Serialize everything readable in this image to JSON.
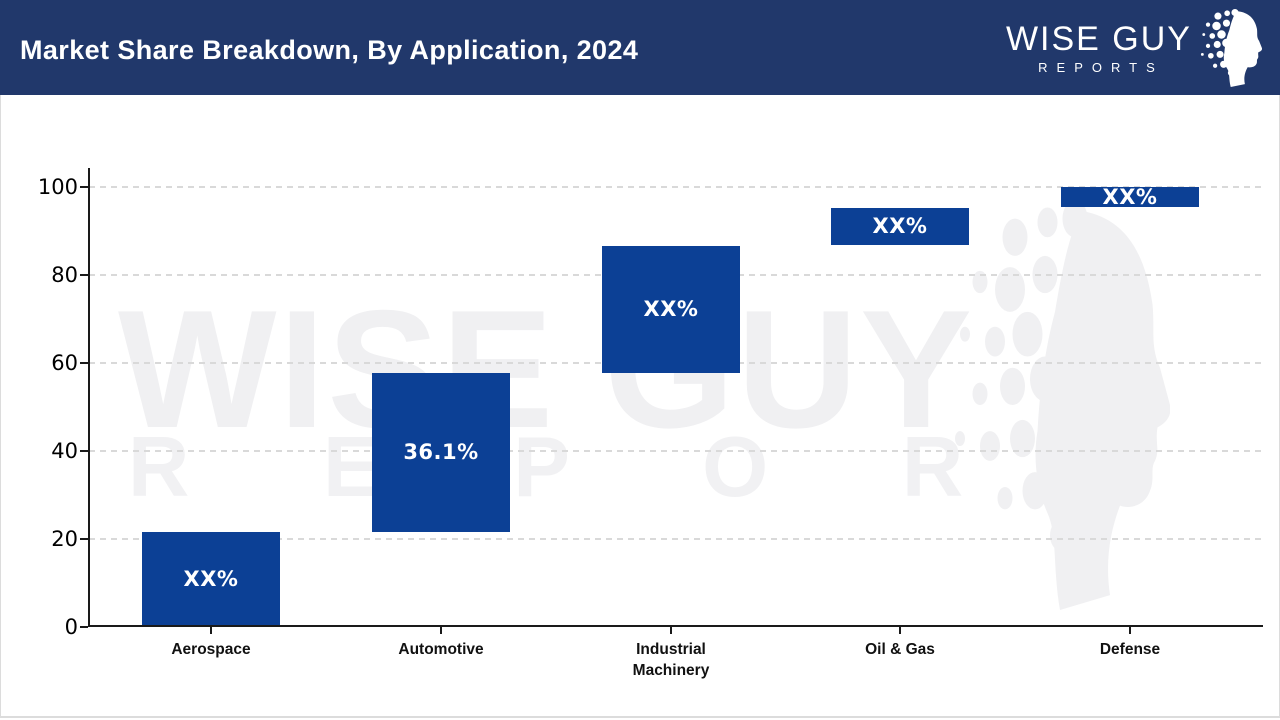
{
  "header": {
    "title": "Market Share Breakdown, By Application, 2024",
    "logo": {
      "line1": "WISE GUY",
      "line2": "REPORTS"
    }
  },
  "watermark": {
    "line1": "WISE GUY",
    "line2": "R E P O R T S"
  },
  "colors": {
    "header_bg": "#21386B",
    "bar": "#0C4095",
    "gridline": "#D9D9D9",
    "watermark": "#F0F0F2",
    "axis": "#1A1A1A",
    "value_label": "#FFFFFF"
  },
  "chart_data": {
    "type": "bar",
    "subtype": "waterfall",
    "title": "Market Share Breakdown, By Application, 2024",
    "categories": [
      "Aerospace",
      "Automotive",
      "Industrial Machinery",
      "Oil & Gas",
      "Defense"
    ],
    "segments": [
      {
        "category": "Aerospace",
        "start": 0,
        "end": 21.5,
        "value_label": "XX%"
      },
      {
        "category": "Automotive",
        "start": 21.6,
        "end": 57.7,
        "value_label": "36.1%",
        "value": 36.1
      },
      {
        "category": "Industrial Machinery",
        "start": 57.7,
        "end": 86.6,
        "value_label": "XX%"
      },
      {
        "category": "Oil & Gas",
        "start": 86.9,
        "end": 95.2,
        "value_label": "XX%"
      },
      {
        "category": "Defense",
        "start": 95.4,
        "end": 100,
        "value_label": "XX%"
      }
    ],
    "xlabel": "",
    "ylabel": "",
    "ylim": [
      0,
      100
    ],
    "yticks": [
      0,
      20,
      40,
      60,
      80,
      100
    ],
    "grid": "horizontal-dashed",
    "legend": "none"
  }
}
